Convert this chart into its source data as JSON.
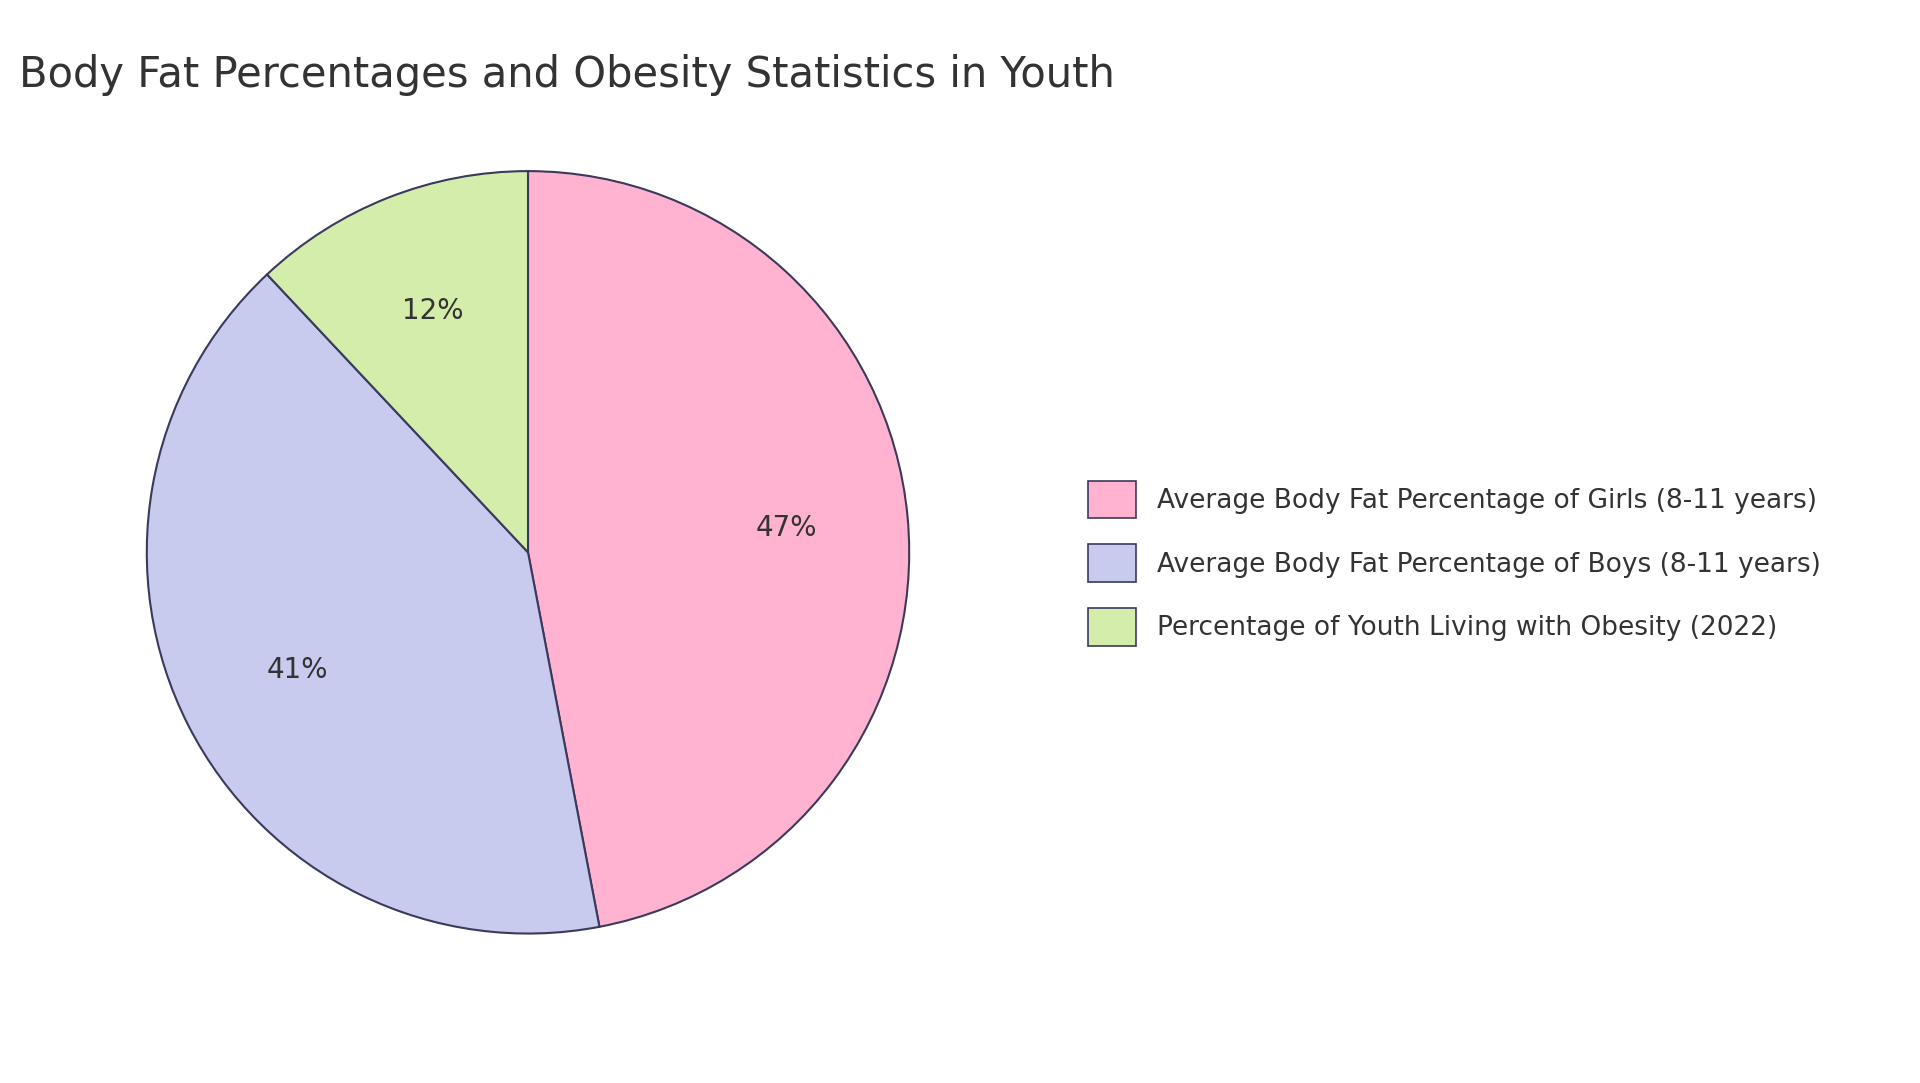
{
  "title": "Body Fat Percentages and Obesity Statistics in Youth",
  "slices": [
    47,
    41,
    12
  ],
  "labels": [
    "Average Body Fat Percentage of Girls (8-11 years)",
    "Average Body Fat Percentage of Boys (8-11 years)",
    "Percentage of Youth Living with Obesity (2022)"
  ],
  "colors": [
    "#FFB3D1",
    "#C8CAEE",
    "#D4EDAA"
  ],
  "edge_color": "#3a3a5c",
  "startangle": 90,
  "title_fontsize": 30,
  "autopct_fontsize": 20,
  "legend_fontsize": 19,
  "background_color": "#ffffff",
  "text_color": "#333333"
}
